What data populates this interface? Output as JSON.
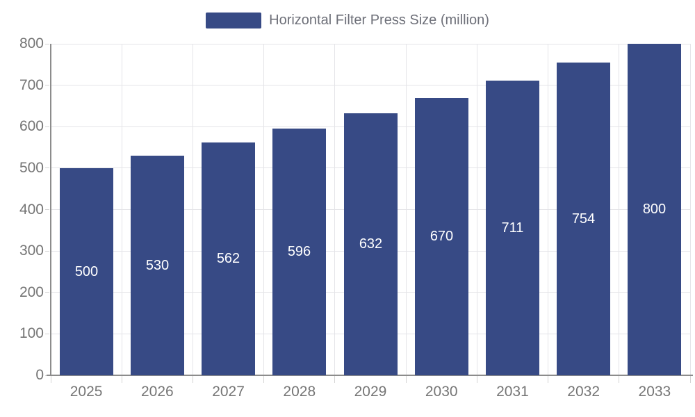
{
  "chart_data": {
    "type": "bar",
    "title": "",
    "xlabel": "",
    "ylabel": "",
    "categories": [
      "2025",
      "2026",
      "2027",
      "2028",
      "2029",
      "2030",
      "2031",
      "2032",
      "2033"
    ],
    "series": [
      {
        "name": "Horizontal Filter Press Size (million)",
        "values": [
          500,
          530,
          562,
          596,
          632,
          670,
          711,
          754,
          800
        ]
      }
    ],
    "value_labels": [
      "500",
      "530",
      "562",
      "596",
      "632",
      "670",
      "711",
      "754",
      "800"
    ],
    "ylim": [
      0,
      800
    ],
    "y_ticks": [
      0,
      100,
      200,
      300,
      400,
      500,
      600,
      700,
      800
    ],
    "grid": "on",
    "legend_position": "top-center",
    "colors": {
      "bar": "#374a85",
      "grid_line": "#e4e4e8",
      "axis_line": "#8c8c8c",
      "tick_mark": "#d4d4d4",
      "axis_label": "#757575",
      "legend_text": "#6e7079",
      "value_label": "#ffffff",
      "background": "#ffffff"
    }
  },
  "legend": {
    "label": "Horizontal Filter Press Size (million)"
  }
}
